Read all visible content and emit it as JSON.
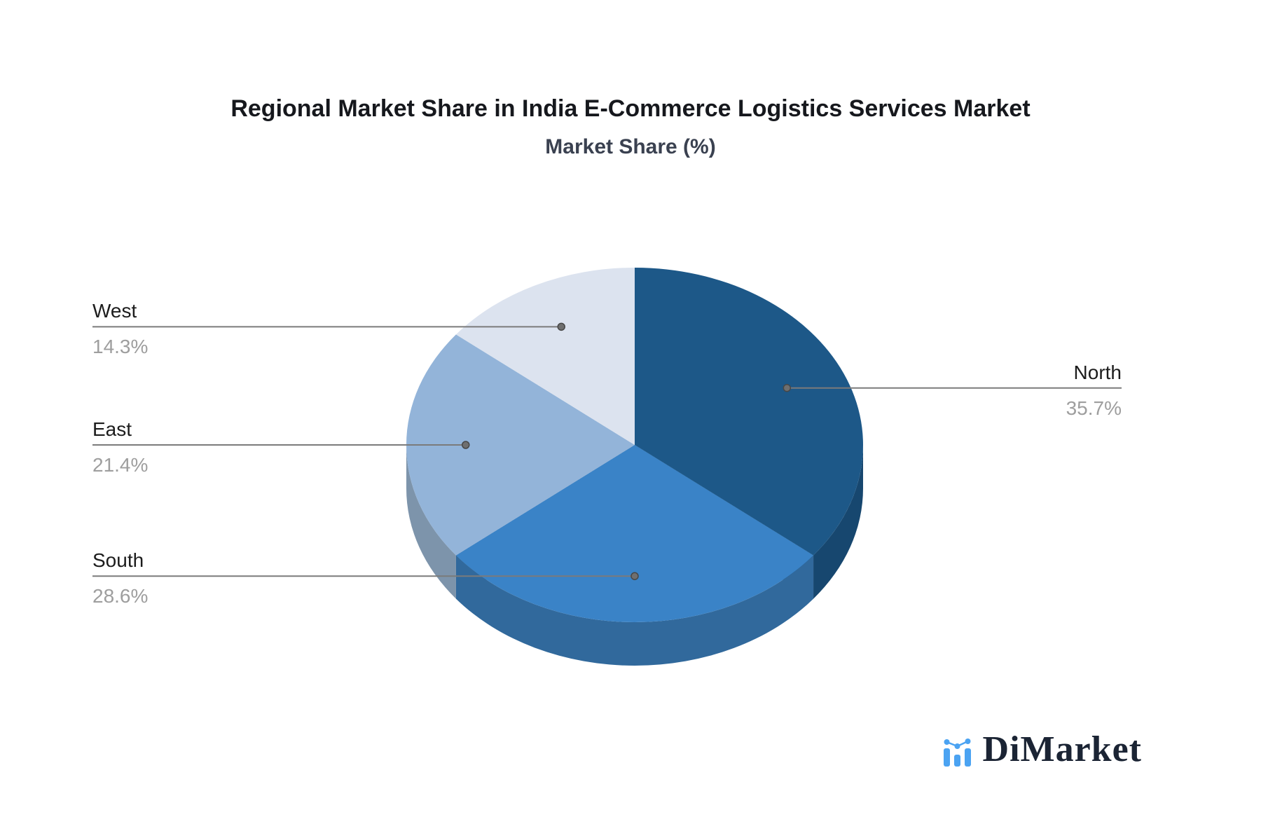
{
  "chart_data": {
    "type": "pie",
    "style": "3d-pie-with-callout-labels",
    "title": "Regional Market Share in India E-Commerce Logistics Services Market",
    "subtitle": "Market Share (%)",
    "unit": "%",
    "legend_position": "callout-labels-left-and-right",
    "slices": [
      {
        "label": "North",
        "value": 35.7,
        "value_label": "35.7%",
        "color": "#1d5888",
        "side_color": "#17476f",
        "cut_color": "#113b5f"
      },
      {
        "label": "South",
        "value": 28.6,
        "value_label": "28.6%",
        "color": "#3a83c7",
        "side_color": "#31699c",
        "cut_color": "#2b5d8b"
      },
      {
        "label": "East",
        "value": 21.4,
        "value_label": "21.4%",
        "color": "#93b4d9",
        "side_color": "#7d94ab",
        "cut_color": "#73899f"
      },
      {
        "label": "West",
        "value": 14.3,
        "value_label": "14.3%",
        "color": "#dce3ef",
        "side_color": "#c3cdde",
        "cut_color": "#b5c0d2"
      }
    ]
  },
  "footer": {
    "brand": "DiMarket"
  },
  "colors": {
    "background": "#ffffff",
    "title": "#16181d",
    "subtitle": "#3a4150",
    "label_name": "#1c1c1c",
    "label_value": "#9e9e9e",
    "leader_line": "#7b7b7b",
    "leader_dot_fill": "#6f6f6f",
    "leader_dot_stroke": "#474747",
    "logo_icon": "#4ba3f2",
    "logo_text": "#1b2434"
  }
}
